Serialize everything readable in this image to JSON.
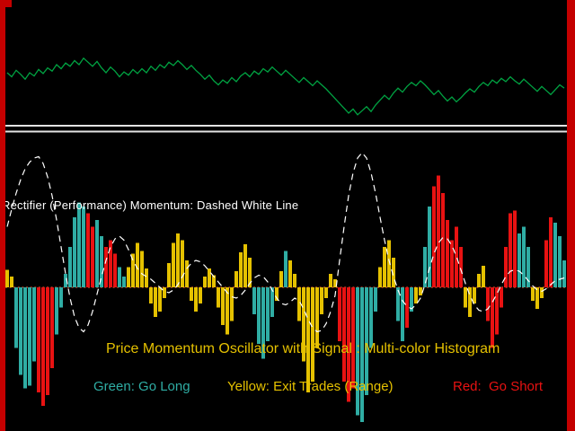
{
  "window": {
    "app": "trading-indicator-chart"
  },
  "labels": {
    "rectifier": "Rectifier (Performance) Momentum: Dashed White Line",
    "oscillator_title": "Price Momentum Oscillator with Signal : Multi-color Histogram",
    "legend_green": "Green: Go Long",
    "legend_yellow": "Yellow: Exit Trades (Range)",
    "legend_red": "Red:  Go Short"
  },
  "colors": {
    "background": "#000000",
    "border": "#c40000",
    "price_line": "#00a342",
    "teal": "#2fada4",
    "yellow": "#e5c100",
    "red": "#e81212",
    "signal_white": "#ffffff",
    "zero_line": "#b2452c",
    "separator": "#e3e3e3",
    "label_white": "#ffffff"
  },
  "chart_data": [
    {
      "id": "price_series",
      "type": "line",
      "color": "#00a342",
      "ylim": [
        0,
        100
      ],
      "grid": false,
      "values": [
        60,
        55,
        63,
        58,
        52,
        60,
        56,
        64,
        59,
        66,
        62,
        70,
        65,
        72,
        68,
        75,
        70,
        78,
        73,
        68,
        74,
        66,
        60,
        67,
        62,
        55,
        61,
        57,
        64,
        59,
        65,
        60,
        68,
        63,
        70,
        66,
        73,
        69,
        75,
        70,
        64,
        69,
        63,
        58,
        52,
        57,
        50,
        45,
        51,
        47,
        54,
        49,
        56,
        60,
        55,
        62,
        58,
        65,
        61,
        67,
        62,
        57,
        63,
        58,
        53,
        48,
        54,
        49,
        44,
        50,
        45,
        40,
        34,
        28,
        22,
        16,
        10,
        15,
        8,
        13,
        18,
        12,
        20,
        26,
        32,
        27,
        35,
        41,
        36,
        43,
        48,
        44,
        50,
        45,
        39,
        33,
        38,
        31,
        25,
        30,
        24,
        29,
        35,
        40,
        36,
        43,
        48,
        44,
        51,
        47,
        53,
        49,
        55,
        50,
        46,
        52,
        47,
        42,
        37,
        43,
        38,
        33,
        39,
        45,
        41
      ]
    },
    {
      "id": "momentum_histogram",
      "type": "bar",
      "zero_baseline": true,
      "ylim": [
        -110,
        110
      ],
      "palette": {
        "g": "#2fada4",
        "y": "#e5c100",
        "r": "#e81212"
      },
      "bar_colors": "yygggggrrrrgggggggrrggrrrggyyyyyyyyyyyyyyyyyyyyyyyyyyyygggggyygyyyyyyyyyyyrrrrgggggyyyyggrgyyggrrrrrrryyyyyrrrrrrrgggyyyrrggg",
      "values": [
        13,
        8,
        -45,
        -65,
        -75,
        -73,
        -55,
        -78,
        -88,
        -80,
        -60,
        -35,
        -15,
        10,
        30,
        52,
        63,
        60,
        55,
        45,
        50,
        38,
        30,
        35,
        25,
        15,
        8,
        15,
        25,
        33,
        27,
        14,
        -12,
        -22,
        -18,
        -8,
        18,
        33,
        40,
        35,
        20,
        -10,
        -18,
        -12,
        8,
        14,
        9,
        -15,
        -28,
        -35,
        -25,
        12,
        26,
        32,
        22,
        -20,
        -42,
        -53,
        -40,
        -22,
        -10,
        12,
        27,
        20,
        10,
        -25,
        -55,
        -78,
        -70,
        -45,
        -20,
        -8,
        10,
        6,
        -40,
        -70,
        -85,
        -75,
        -95,
        -100,
        -80,
        -45,
        -18,
        15,
        30,
        35,
        22,
        -25,
        -40,
        -30,
        -18,
        -12,
        -6,
        30,
        60,
        75,
        83,
        70,
        50,
        35,
        45,
        30,
        -15,
        -22,
        -12,
        10,
        16,
        -25,
        -45,
        -35,
        -15,
        30,
        55,
        57,
        40,
        45,
        30,
        -10,
        -16,
        -8,
        35,
        52,
        48,
        38,
        20
      ]
    },
    {
      "id": "rectifier_momentum",
      "type": "line",
      "style": "dashed",
      "color": "#ffffff",
      "ylim": [
        -110,
        110
      ],
      "values": [
        45,
        58,
        70,
        80,
        88,
        93,
        96,
        97,
        92,
        82,
        68,
        50,
        30,
        10,
        -8,
        -22,
        -30,
        -33,
        -28,
        -18,
        -5,
        8,
        20,
        30,
        36,
        38,
        35,
        28,
        20,
        14,
        10,
        8,
        6,
        3,
        0,
        -3,
        -4,
        -2,
        2,
        8,
        14,
        18,
        20,
        19,
        16,
        12,
        8,
        4,
        0,
        -4,
        -7,
        -8,
        -6,
        -2,
        3,
        7,
        9,
        8,
        4,
        -2,
        -8,
        -12,
        -13,
        -11,
        -8,
        -10,
        -16,
        -24,
        -30,
        -33,
        -32,
        -27,
        -18,
        -6,
        20,
        45,
        68,
        85,
        96,
        100,
        96,
        85,
        70,
        52,
        35,
        20,
        8,
        -2,
        -10,
        -14,
        -16,
        -13,
        -8,
        2,
        14,
        25,
        33,
        37,
        36,
        31,
        23,
        13,
        3,
        -6,
        -13,
        -17,
        -18,
        -16,
        -11,
        -5,
        2,
        8,
        12,
        13,
        12,
        9,
        5,
        1,
        -2,
        -3,
        -1,
        2,
        5,
        6,
        7
      ]
    }
  ]
}
